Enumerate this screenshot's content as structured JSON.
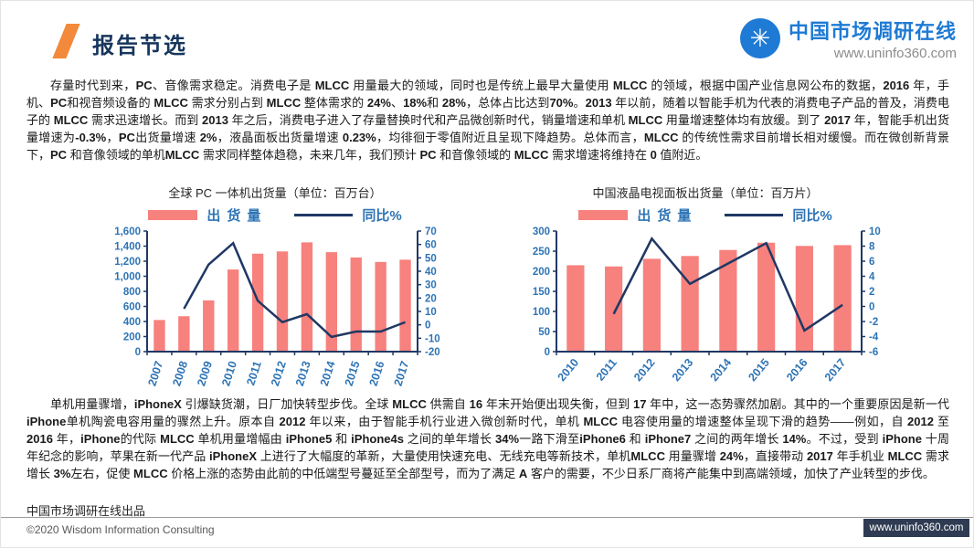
{
  "header": {
    "title": "报告节选",
    "logo_name": "中国市场调研在线",
    "logo_url": "www.uninfo360.com"
  },
  "paragraphs": {
    "p1": [
      {
        "t": "存量时代到来，"
      },
      {
        "t": "PC",
        "b": true
      },
      {
        "t": "、音像需求稳定。消费电子是 "
      },
      {
        "t": "MLCC",
        "b": true
      },
      {
        "t": " 用量最大的领域，同时也是传统上最早大量使用 "
      },
      {
        "t": "MLCC",
        "b": true
      },
      {
        "t": " 的领域，根据中国产业信息网公布的数据，"
      },
      {
        "t": "2016",
        "b": true
      },
      {
        "t": " 年，手机、"
      },
      {
        "t": "PC",
        "b": true
      },
      {
        "t": "和视音频设备的 "
      },
      {
        "t": "MLCC",
        "b": true
      },
      {
        "t": " 需求分别占到 "
      },
      {
        "t": "MLCC",
        "b": true
      },
      {
        "t": " 整体需求的 "
      },
      {
        "t": "24%",
        "b": true
      },
      {
        "t": "、"
      },
      {
        "t": "18%",
        "b": true
      },
      {
        "t": "和 "
      },
      {
        "t": "28%",
        "b": true
      },
      {
        "t": "，总体占比达到"
      },
      {
        "t": "70%",
        "b": true
      },
      {
        "t": "。"
      },
      {
        "t": "2013",
        "b": true
      },
      {
        "t": " 年以前，随着以智能手机为代表的消费电子产品的普及，消费电子的 "
      },
      {
        "t": "MLCC",
        "b": true
      },
      {
        "t": " 需求迅速增长。而到 "
      },
      {
        "t": "2013",
        "b": true
      },
      {
        "t": " 年之后，消费电子进入了存量替换时代和产品微创新时代，销量增速和单机 "
      },
      {
        "t": "MLCC",
        "b": true
      },
      {
        "t": " 用量增速整体均有放缓。到了 "
      },
      {
        "t": "2017",
        "b": true
      },
      {
        "t": " 年，智能手机出货量增速为"
      },
      {
        "t": "-0.3%",
        "b": true
      },
      {
        "t": "，"
      },
      {
        "t": "PC",
        "b": true
      },
      {
        "t": "出货量增速 "
      },
      {
        "t": "2%",
        "b": true
      },
      {
        "t": "，液晶面板出货量增速 "
      },
      {
        "t": "0.23%",
        "b": true
      },
      {
        "t": "，均徘徊于零值附近且呈现下降趋势。总体而言，"
      },
      {
        "t": "MLCC",
        "b": true
      },
      {
        "t": " 的传统性需求目前增长相对缓慢。而在微创新背景下，"
      },
      {
        "t": "PC",
        "b": true
      },
      {
        "t": " 和音像领域的单机"
      },
      {
        "t": "MLCC",
        "b": true
      },
      {
        "t": " 需求同样整体趋稳，未来几年，我们预计 "
      },
      {
        "t": "PC",
        "b": true
      },
      {
        "t": " 和音像领域的 "
      },
      {
        "t": "MLCC",
        "b": true
      },
      {
        "t": " 需求增速将维持在 "
      },
      {
        "t": "0",
        "b": true
      },
      {
        "t": " 值附近。"
      }
    ],
    "p2": [
      {
        "t": "单机用量骤增，"
      },
      {
        "t": "iPhoneX",
        "b": true
      },
      {
        "t": " 引爆缺货潮，日厂加快转型步伐。全球 "
      },
      {
        "t": "MLCC",
        "b": true
      },
      {
        "t": " 供需自 "
      },
      {
        "t": "16",
        "b": true
      },
      {
        "t": " 年末开始便出现失衡，但到 "
      },
      {
        "t": "17",
        "b": true
      },
      {
        "t": " 年中，这一态势骤然加剧。其中的一个重要原因是新一代 "
      },
      {
        "t": "iPhone",
        "b": true
      },
      {
        "t": "单机陶瓷电容用量的骤然上升。原本自 "
      },
      {
        "t": "2012",
        "b": true
      },
      {
        "t": " 年以来，由于智能手机行业进入微创新时代，单机 "
      },
      {
        "t": "MLCC",
        "b": true
      },
      {
        "t": " 电容使用量的增速整体呈现下滑的趋势——例如，自 "
      },
      {
        "t": "2012",
        "b": true
      },
      {
        "t": " 至 "
      },
      {
        "t": "2016",
        "b": true
      },
      {
        "t": " 年，"
      },
      {
        "t": "iPhone",
        "b": true
      },
      {
        "t": "的代际 "
      },
      {
        "t": "MLCC",
        "b": true
      },
      {
        "t": " 单机用量增幅由 "
      },
      {
        "t": "iPhone5",
        "b": true
      },
      {
        "t": " 和 "
      },
      {
        "t": "iPhone4s",
        "b": true
      },
      {
        "t": " 之间的单年增长 "
      },
      {
        "t": "34%",
        "b": true
      },
      {
        "t": "一路下滑至"
      },
      {
        "t": "iPhone6",
        "b": true
      },
      {
        "t": " 和 "
      },
      {
        "t": "iPhone7",
        "b": true
      },
      {
        "t": " 之间的两年增长 "
      },
      {
        "t": "14%",
        "b": true
      },
      {
        "t": "。不过，受到 "
      },
      {
        "t": "iPhone",
        "b": true
      },
      {
        "t": " 十周年纪念的影响，苹果在新一代产品 "
      },
      {
        "t": "iPhoneX",
        "b": true
      },
      {
        "t": " 上进行了大幅度的革新，大量使用快速充电、无线充电等新技术，单机"
      },
      {
        "t": "MLCC",
        "b": true
      },
      {
        "t": " 用量骤增 "
      },
      {
        "t": "24%",
        "b": true
      },
      {
        "t": "，直接带动 "
      },
      {
        "t": "2017",
        "b": true
      },
      {
        "t": " 年手机业 "
      },
      {
        "t": "MLCC",
        "b": true
      },
      {
        "t": " 需求增长 "
      },
      {
        "t": "3%",
        "b": true
      },
      {
        "t": "左右，促使 "
      },
      {
        "t": "MLCC",
        "b": true
      },
      {
        "t": " 价格上涨的态势由此前的中低端型号蔓延至全部型号，而为了满足 "
      },
      {
        "t": "A",
        "b": true
      },
      {
        "t": " 客户的需要，不少日系厂商将产能集中到高端领域，加快了产业转型的步伐。"
      }
    ]
  },
  "chart_data": [
    {
      "type": "bar",
      "combo": "bar+line",
      "title": "全球 PC 一体机出货量（单位：百万台）",
      "legend": [
        "出货量",
        "同比%"
      ],
      "legend_position": "top",
      "grid": false,
      "categories": [
        "2007",
        "2008",
        "2009",
        "2010",
        "2011",
        "2012",
        "2013",
        "2014",
        "2015",
        "2016",
        "2017"
      ],
      "series": [
        {
          "name": "出货量",
          "type": "bar",
          "axis": "left",
          "values": [
            420,
            470,
            680,
            1090,
            1300,
            1330,
            1450,
            1320,
            1250,
            1190,
            1220
          ]
        },
        {
          "name": "同比%",
          "type": "line",
          "axis": "right",
          "values": [
            null,
            12,
            45,
            61,
            18,
            2,
            8,
            -9,
            -5,
            -5,
            2
          ]
        }
      ],
      "ylim": [
        0,
        1600
      ],
      "ystep": 200,
      "y2lim": [
        -20,
        70
      ],
      "y2step": 10,
      "bar_color": "#F7817D",
      "line_color": "#1F3864"
    },
    {
      "type": "bar",
      "combo": "bar+line",
      "title": "中国液晶电视面板出货量（单位：百万片）",
      "legend": [
        "出货量",
        "同比%"
      ],
      "legend_position": "top",
      "grid": false,
      "categories": [
        "2010",
        "2011",
        "2012",
        "2013",
        "2014",
        "2015",
        "2016",
        "2017"
      ],
      "series": [
        {
          "name": "出货量",
          "type": "bar",
          "axis": "left",
          "values": [
            215,
            212,
            231,
            238,
            253,
            271,
            263,
            265
          ]
        },
        {
          "name": "同比%",
          "type": "line",
          "axis": "right",
          "values": [
            null,
            -1,
            9,
            3,
            5.7,
            8.4,
            -3.2,
            0.2
          ]
        }
      ],
      "ylim": [
        0,
        300
      ],
      "ystep": 50,
      "y2lim": [
        -6,
        10
      ],
      "y2step": 2,
      "bar_color": "#F7817D",
      "line_color": "#1F3864"
    }
  ],
  "footer": {
    "produced_by": "中国市场调研在线出品",
    "copyright": "©2020 Wisdom Information Consulting",
    "site": "www.uninfo360.com"
  },
  "colors": {
    "accent_orange": "#F2893B",
    "brand_blue": "#1E7AD4",
    "header_navy": "#17365D",
    "bar_pink": "#F7817D",
    "line_navy": "#1F3864",
    "tick_blue": "#2E74B5",
    "footer_box": "#2E3B52"
  }
}
